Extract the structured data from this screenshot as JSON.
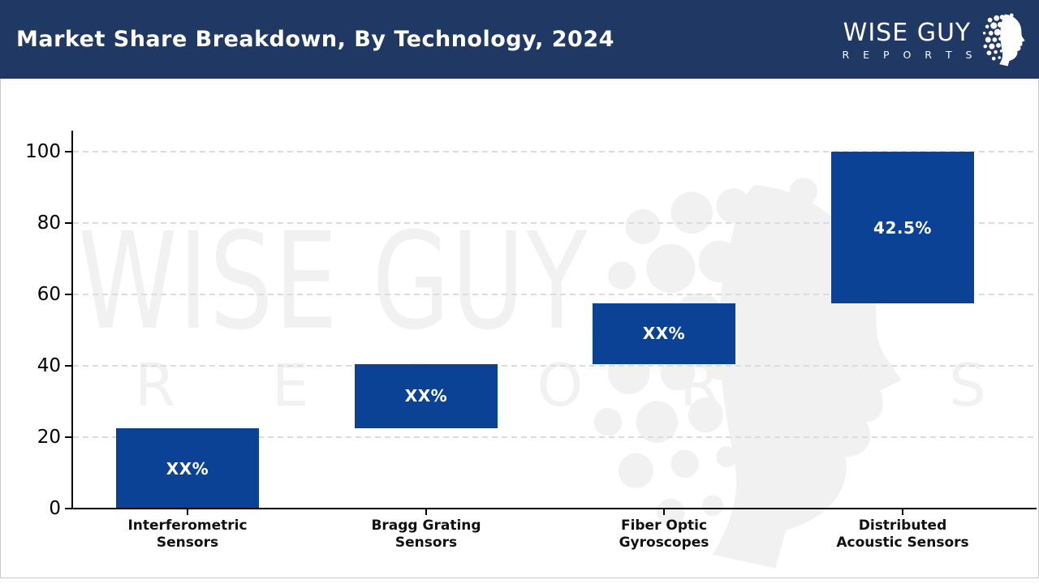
{
  "header": {
    "title": "Market Share Breakdown, By Technology, 2024",
    "bg_color": "#1F3864",
    "logo": {
      "line1": "WISE GUY",
      "line2": "R E P O R T S"
    }
  },
  "watermark": {
    "line1": "WISE GUY",
    "line2": "R E P O R T S"
  },
  "chart_data": {
    "type": "bar",
    "subtype": "waterfall-stacked-segments",
    "title": "Market Share Breakdown, By Technology, 2024",
    "xlabel": "",
    "ylabel": "",
    "ylim": [
      0,
      105
    ],
    "y_ticks": [
      0,
      20,
      40,
      60,
      80,
      100
    ],
    "grid": "horizontal-dashed",
    "legend": "none",
    "bar_color": "#0C4295",
    "categories": [
      "Interferometric Sensors",
      "Bragg Grating Sensors",
      "Fiber Optic Gyroscopes",
      "Distributed Acoustic Sensors"
    ],
    "bars": [
      {
        "label_line1": "Interferometric",
        "label_line2": "Sensors",
        "start": 0,
        "end": 22.5,
        "value": 22.5,
        "value_label": "XX%"
      },
      {
        "label_line1": "Bragg Grating",
        "label_line2": "Sensors",
        "start": 22.5,
        "end": 40.5,
        "value": 18,
        "value_label": "XX%"
      },
      {
        "label_line1": "Fiber Optic",
        "label_line2": "Gyroscopes",
        "start": 40.5,
        "end": 57.5,
        "value": 17,
        "value_label": "XX%"
      },
      {
        "label_line1": "Distributed",
        "label_line2": "Acoustic Sensors",
        "start": 57.5,
        "end": 100,
        "value": 42.5,
        "value_label": "42.5%"
      }
    ]
  }
}
